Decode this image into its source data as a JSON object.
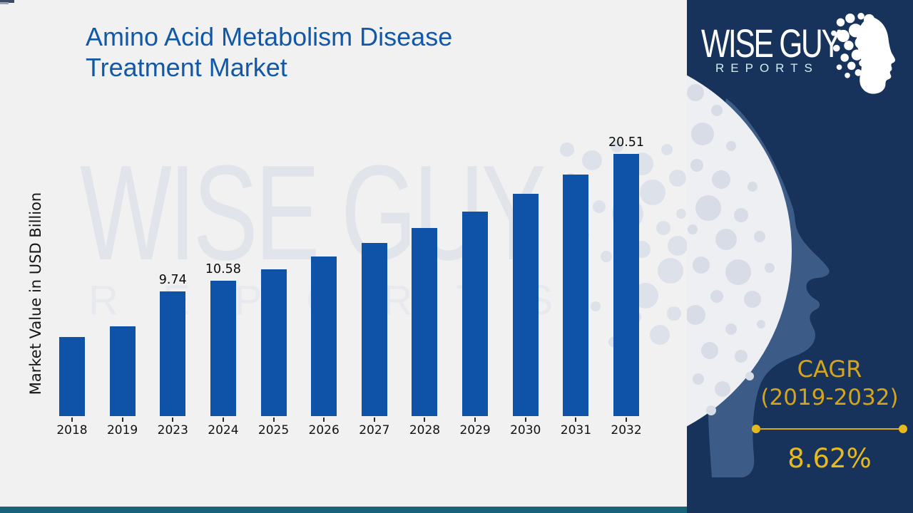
{
  "title": {
    "line1": "Amino Acid Metabolism Disease",
    "line2": "Treatment Market"
  },
  "watermark": {
    "brand": "WISE GUY",
    "sub": "REPORTS"
  },
  "logo": {
    "brand": "WISE GUY",
    "sub": "REPORTS",
    "face_icon": "dotted-face-profile"
  },
  "cagr": {
    "label": "CAGR",
    "range": "(2019-2032)",
    "value": "8.62%"
  },
  "colors": {
    "bar_blue": "#0e53a7",
    "title_blue": "#1158a8",
    "navy_panel": "#17335c",
    "face_silhouette_blue": "#3d5b87",
    "light_circle": "#edeff3",
    "gold_accent": "#d3a41c",
    "gold_bright": "#e6b91e",
    "teal_strip": "#186379",
    "background": "#f1f1f2"
  },
  "chart_data": {
    "type": "bar",
    "title": "Amino Acid Metabolism Disease Treatment Market",
    "ylabel": "Market Value in USD Billion",
    "xlabel": "",
    "categories": [
      "2018",
      "2019",
      "2023",
      "2024",
      "2025",
      "2026",
      "2027",
      "2028",
      "2029",
      "2030",
      "2031",
      "2032"
    ],
    "values": [
      6.2,
      7.0,
      9.74,
      10.58,
      11.49,
      12.48,
      13.56,
      14.73,
      16.0,
      17.38,
      18.88,
      20.51
    ],
    "point_labels": [
      "",
      "",
      "9.74",
      "10.58",
      "",
      "",
      "",
      "",
      "",
      "",
      "",
      "20.51"
    ],
    "unit": "USD Billion",
    "ylim": [
      0,
      22
    ],
    "grid": false,
    "legend": false,
    "bar_color": "#0e53a7"
  }
}
